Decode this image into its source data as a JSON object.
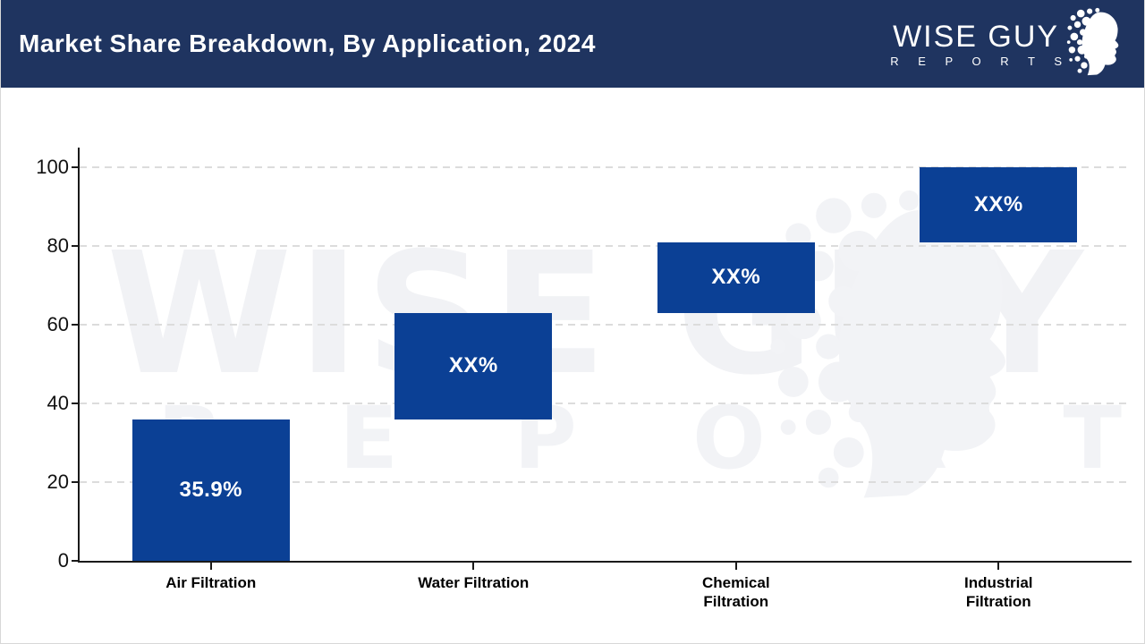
{
  "header": {
    "title": "Market Share Breakdown, By Application, 2024",
    "brand": {
      "line1": "WISE GUY",
      "line2": "R E P O R T S"
    }
  },
  "watermark": {
    "line1": "WISE GUY",
    "line2": "R E P O R T S"
  },
  "colors": {
    "header_bg": "#1f3460",
    "bar": "#0b4095",
    "bar_label": "#ffffff",
    "axis": "#1a1a1a",
    "gridline": "#dcdcdc"
  },
  "chart_data": {
    "type": "bar",
    "subtype": "floating-waterfall-percentage",
    "title": "Market Share Breakdown, By Application, 2024",
    "categories": [
      {
        "name": "Air Filtration",
        "lines": [
          "Air Filtration"
        ]
      },
      {
        "name": "Water Filtration",
        "lines": [
          "Water Filtration"
        ]
      },
      {
        "name": "Chemical Filtration",
        "lines": [
          "Chemical",
          "Filtration"
        ]
      },
      {
        "name": "Industrial Filtration",
        "lines": [
          "Industrial",
          "Filtration"
        ]
      }
    ],
    "segments": [
      {
        "category": "Air Filtration",
        "start": 0,
        "end": 35.9,
        "label": "35.9%"
      },
      {
        "category": "Water Filtration",
        "start": 35.9,
        "end": 63,
        "label": "XX%"
      },
      {
        "category": "Chemical Filtration",
        "start": 63,
        "end": 81,
        "label": "XX%"
      },
      {
        "category": "Industrial Filtration",
        "start": 81,
        "end": 100,
        "label": "XX%"
      }
    ],
    "ylim": [
      0,
      100
    ],
    "yticks": [
      0,
      20,
      40,
      60,
      80,
      100
    ],
    "grid": {
      "horizontal": true,
      "style": "dashed"
    },
    "legend": "none"
  }
}
